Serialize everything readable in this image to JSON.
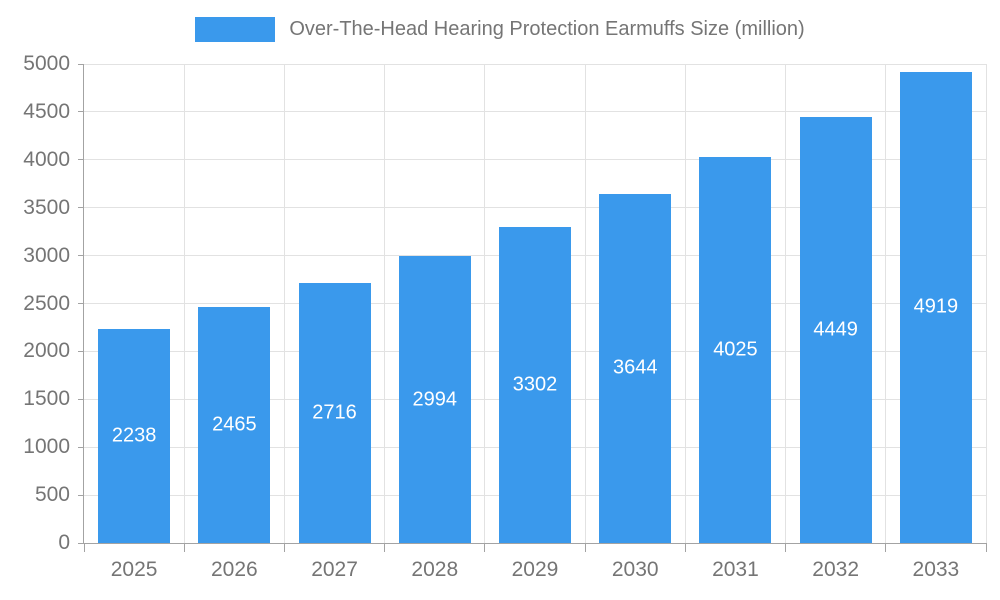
{
  "chart": {
    "legend_label": "Over-The-Head Hearing Protection Earmuffs Size (million)"
  },
  "chart_data": {
    "type": "bar",
    "title": "Over-The-Head Hearing Protection Earmuffs Size (million)",
    "categories": [
      "2025",
      "2026",
      "2027",
      "2028",
      "2029",
      "2030",
      "2031",
      "2032",
      "2033"
    ],
    "values": [
      2238,
      2465,
      2716,
      2994,
      3302,
      3644,
      4025,
      4449,
      4919
    ],
    "xlabel": "",
    "ylabel": "",
    "ylim": [
      0,
      5000
    ],
    "ytick_step": 500,
    "yticks": [
      0,
      500,
      1000,
      1500,
      2000,
      2500,
      3000,
      3500,
      4000,
      4500,
      5000
    ],
    "grid": true,
    "legend_position": "top-center",
    "value_label_position": "inside-center",
    "colors": {
      "bar": "#3a99ec",
      "value_label": "#ffffff",
      "axis_text": "#757575",
      "grid_line": "#e2e2e2",
      "axis_line": "#a3a3a3",
      "background": "#ffffff"
    }
  }
}
